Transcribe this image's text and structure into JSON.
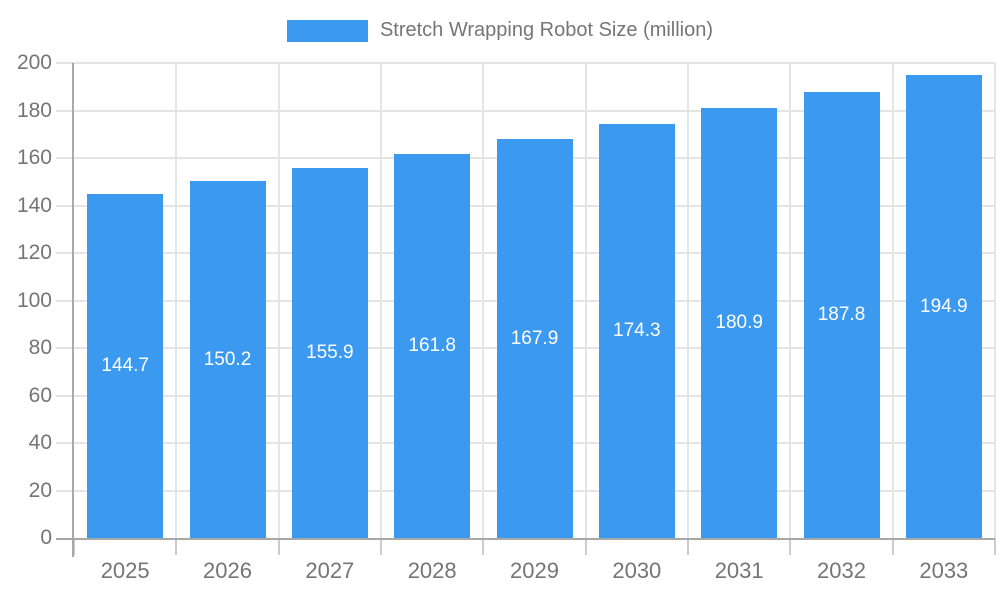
{
  "legend": {
    "label": "Stretch Wrapping Robot Size (million)"
  },
  "chart_data": {
    "type": "bar",
    "title": "Stretch Wrapping Robot Size (million)",
    "series_name": "Stretch Wrapping Robot Size (million)",
    "categories": [
      "2025",
      "2026",
      "2027",
      "2028",
      "2029",
      "2030",
      "2031",
      "2032",
      "2033"
    ],
    "values": [
      144.7,
      150.2,
      155.9,
      161.8,
      167.9,
      174.3,
      180.9,
      187.8,
      194.9
    ],
    "value_labels": [
      "144.7",
      "150.2",
      "155.9",
      "161.8",
      "167.9",
      "174.3",
      "180.9",
      "187.8",
      "194.9"
    ],
    "yticks": [
      "0",
      "20",
      "40",
      "60",
      "80",
      "100",
      "120",
      "140",
      "160",
      "180",
      "200"
    ],
    "ylim": [
      0,
      200
    ],
    "ytick_step": 20,
    "xlabel": "",
    "ylabel": "",
    "grid": true,
    "legend_position": "top-center"
  },
  "colors": {
    "bar": "#3b99f0",
    "grid": "#e4e4e4",
    "axis": "#a8a8a8",
    "tick": "#cccccc",
    "text": "#757575",
    "bar_label": "#ffffff",
    "background": "#ffffff"
  }
}
